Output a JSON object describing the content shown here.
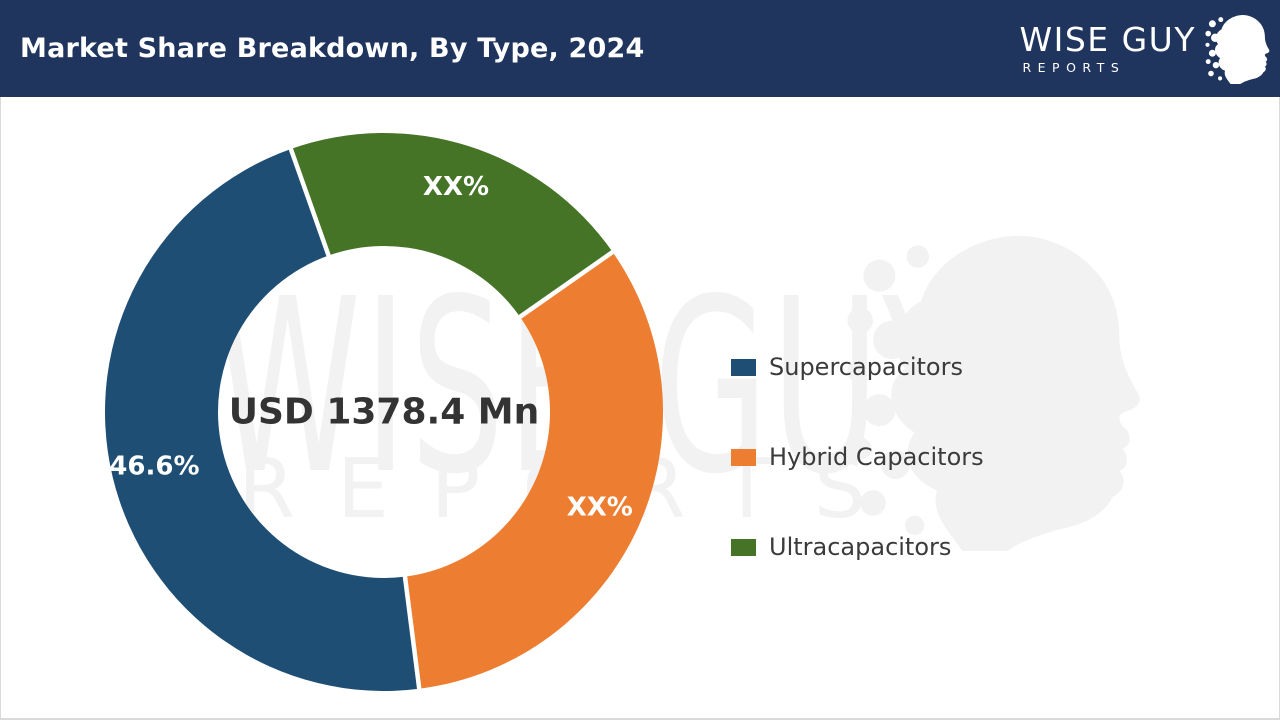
{
  "header": {
    "title": "Market Share Breakdown, By Type, 2024",
    "logo": {
      "line1": "WISE GUY",
      "line2": "REPORTS"
    }
  },
  "watermark": {
    "line1": "WISE GUY",
    "line2": "REPORTS"
  },
  "chart_data": {
    "type": "pie",
    "donut": true,
    "title": "Market Share Breakdown, By Type, 2024",
    "center_label": "USD 1378.4 Mn",
    "start_angle_deg": -19.5,
    "direction": "clockwise",
    "legend_position": "right",
    "segments": [
      {
        "name": "Ultracapacitors",
        "value": 20.7,
        "label": "XX%",
        "color": "#467427"
      },
      {
        "name": "Hybrid Capacitors",
        "value": 32.7,
        "label": "XX%",
        "color": "#ed7d31"
      },
      {
        "name": "Supercapacitors",
        "value": 46.6,
        "label": "46.6%",
        "color": "#1f4e74"
      }
    ],
    "legend": [
      "Supercapacitors",
      "Hybrid Capacitors",
      "Ultracapacitors"
    ]
  },
  "colors": {
    "header_bg": "#20355e",
    "segment_label": "#ffffff",
    "center_label": "#333333",
    "legend_text": "#3b3b3b",
    "watermark": "#f2f2f2",
    "page_border": "#d9d9d9"
  }
}
